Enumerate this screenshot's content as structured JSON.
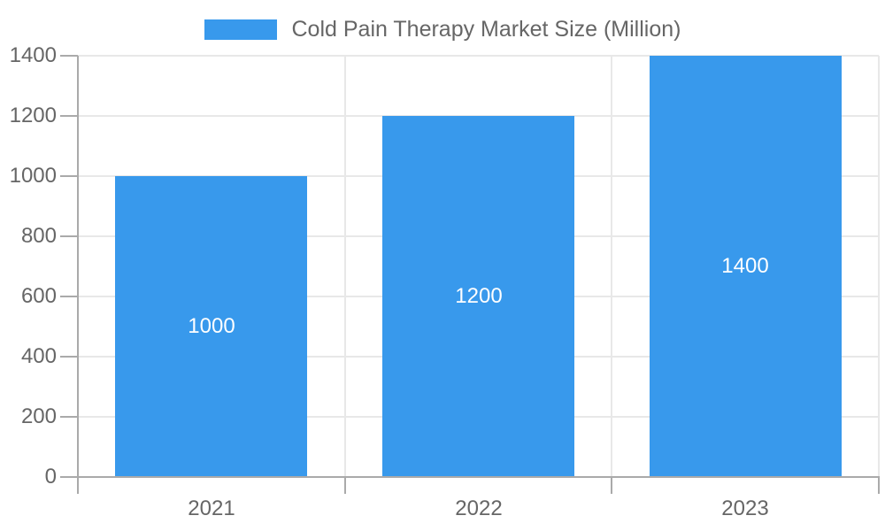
{
  "legend": {
    "label": "Cold Pain Therapy Market Size (Million)"
  },
  "chart_data": {
    "type": "bar",
    "title": "Cold Pain Therapy Market Size (Million)",
    "categories": [
      "2021",
      "2022",
      "2023"
    ],
    "values": [
      1000,
      1200,
      1400
    ],
    "series": [
      {
        "name": "Cold Pain Therapy Market Size (Million)",
        "values": [
          1000,
          1200,
          1400
        ]
      }
    ],
    "bar_labels": [
      "1000",
      "1200",
      "1400"
    ],
    "xlabel": "",
    "ylabel": "",
    "ylim": [
      0,
      1400
    ],
    "yticks": [
      0,
      200,
      400,
      600,
      800,
      1000,
      1200,
      1400
    ],
    "grid": true,
    "legend_position": "top-center",
    "colors": {
      "bar": "#3899ec",
      "bar_label_text": "#ffffff",
      "axis_line": "#aaaaaa",
      "grid_line": "#e8e8e8",
      "tick_text": "#666666",
      "legend_text": "#666666",
      "background": "#ffffff"
    }
  }
}
